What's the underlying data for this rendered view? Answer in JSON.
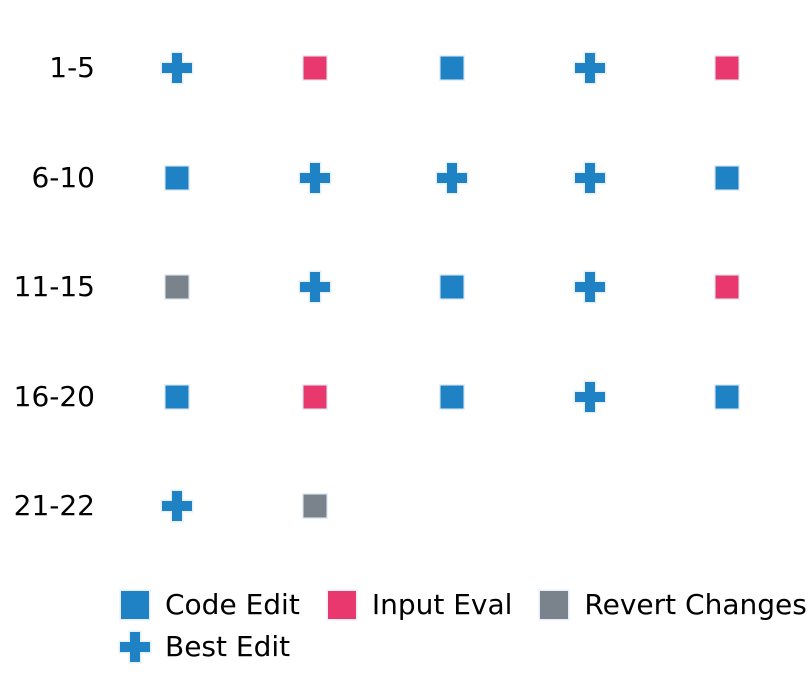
{
  "chart_data": {
    "type": "scatter",
    "title": "",
    "xlabel": "",
    "ylabel": "",
    "grid": false,
    "categories": [
      "1-5",
      "6-10",
      "11-15",
      "16-20",
      "21-22"
    ],
    "rows": [
      {
        "label": "1-5",
        "markers": [
          "best_edit",
          "input_eval",
          "code_edit",
          "best_edit",
          "input_eval"
        ]
      },
      {
        "label": "6-10",
        "markers": [
          "code_edit",
          "best_edit",
          "best_edit",
          "best_edit",
          "code_edit"
        ]
      },
      {
        "label": "11-15",
        "markers": [
          "revert_changes",
          "best_edit",
          "code_edit",
          "best_edit",
          "input_eval"
        ]
      },
      {
        "label": "16-20",
        "markers": [
          "code_edit",
          "input_eval",
          "code_edit",
          "best_edit",
          "code_edit"
        ]
      },
      {
        "label": "21-22",
        "markers": [
          "best_edit",
          "revert_changes"
        ]
      }
    ],
    "marker_styles": {
      "code_edit": {
        "shape": "square",
        "color": "#1e82c4",
        "label": "Code Edit"
      },
      "input_eval": {
        "shape": "square",
        "color": "#e8386e",
        "label": "Input Eval"
      },
      "revert_changes": {
        "shape": "square",
        "color": "#7a828c",
        "label": "Revert Changes"
      },
      "best_edit": {
        "shape": "plus",
        "color": "#1e82c4",
        "label": "Best Edit"
      }
    },
    "marker_edge_color": "#e6eff8",
    "legend": {
      "position": "bottom-left",
      "rows": [
        [
          "code_edit",
          "input_eval",
          "revert_changes"
        ],
        [
          "best_edit"
        ]
      ]
    },
    "layout_hints": {
      "row_y_centers": [
        68,
        177.5,
        287,
        396.5,
        506
      ],
      "col_x_centers": [
        177,
        314.5,
        452,
        589.5,
        727
      ],
      "row_label_right_edge": 95
    }
  }
}
